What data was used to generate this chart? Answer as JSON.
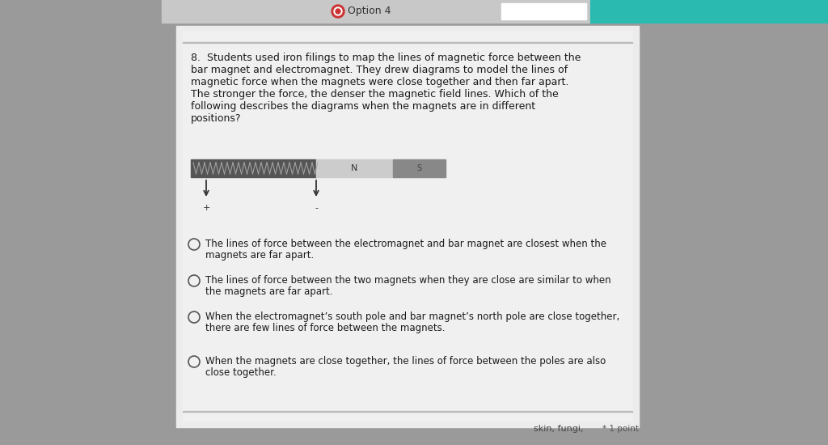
{
  "bg_outer": "#9a9a9a",
  "bg_top_bar": "#c8c8c8",
  "bg_teal": "#2abab0",
  "bg_card": "#ececec",
  "bg_inner": "#f0f0f0",
  "text_color": "#1a1a1a",
  "option4_text": "Option 4",
  "radio_color": "#cc3333",
  "magnet_left_color": "#555555",
  "magnet_right_color": "#888888",
  "magnet_mid_color": "#cccccc",
  "choices": [
    "The lines of force between the electromagnet and bar magnet are closest when the\nmagnets are far apart.",
    "The lines of force between the two magnets when they are close are similar to when\nthe magnets are far apart.",
    "When the electromagnet’s south pole and bar magnet’s north pole are close together,\nthere are few lines of force between the magnets.",
    "When the magnets are close together, the lines of force between the poles are also\nclose together."
  ],
  "question_lines": [
    "8.  Students used iron filings to map the lines of magnetic force between the",
    "bar magnet and electromagnet. They drew diagrams to model the lines of",
    "magnetic force when the magnets were close together and then far apart.",
    "The stronger the force, the denser the magnetic field lines. Which of the",
    "following describes the diagrams when the magnets are in different",
    "positions?"
  ],
  "bottom_text": "skin, fungi,",
  "bottom_text2": "* 1 point",
  "font_size_question": 9,
  "font_size_choice": 8.5
}
